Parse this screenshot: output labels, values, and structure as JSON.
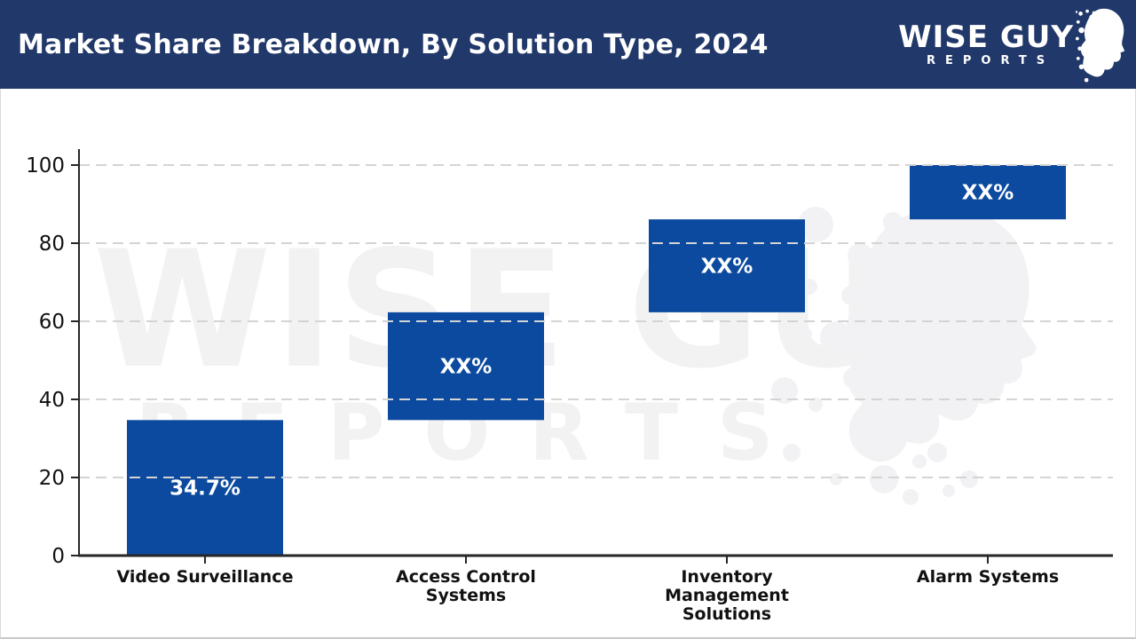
{
  "header": {
    "title": "Market Share Breakdown, By Solution Type, 2024",
    "background_color": "#21386a",
    "logo": {
      "wordmark": "WISE GUY",
      "subtext": "REPORTS"
    }
  },
  "watermark": {
    "wordmark": "WISE GUY",
    "subtext": "REPORTS",
    "color": "#f2f2f2"
  },
  "chart_data": {
    "type": "bar",
    "variant": "floating-waterfall",
    "title": "Market Share Breakdown, By Solution Type, 2024",
    "categories": [
      "Video Surveillance",
      "Access Control Systems",
      "Inventory Management Solutions",
      "Alarm Systems"
    ],
    "category_label_lines": [
      [
        "Video Surveillance"
      ],
      [
        "Access Control",
        "Systems"
      ],
      [
        "Inventory",
        "Management",
        "Solutions"
      ],
      [
        "Alarm Systems"
      ]
    ],
    "segments": [
      {
        "category": "Video Surveillance",
        "start": 0,
        "end": 34.7,
        "label": "34.7%"
      },
      {
        "category": "Access Control Systems",
        "start": 34.7,
        "end": 62.3,
        "label": "XX%"
      },
      {
        "category": "Inventory Management Solutions",
        "start": 62.3,
        "end": 86.1,
        "label": "XX%"
      },
      {
        "category": "Alarm Systems",
        "start": 86.1,
        "end": 100,
        "label": "XX%"
      }
    ],
    "xlabel": "",
    "ylabel": "",
    "ylim": [
      0,
      104
    ],
    "yticks": [
      0,
      20,
      40,
      60,
      80,
      100
    ],
    "grid": {
      "horizontal": true,
      "style": "dashed",
      "color": "#d4d4d4",
      "drawn_over_bars": true
    },
    "bar_color": "#0b4a9e",
    "bar_label_color": "#ffffff",
    "axis_color": "#262626",
    "legend": null
  }
}
